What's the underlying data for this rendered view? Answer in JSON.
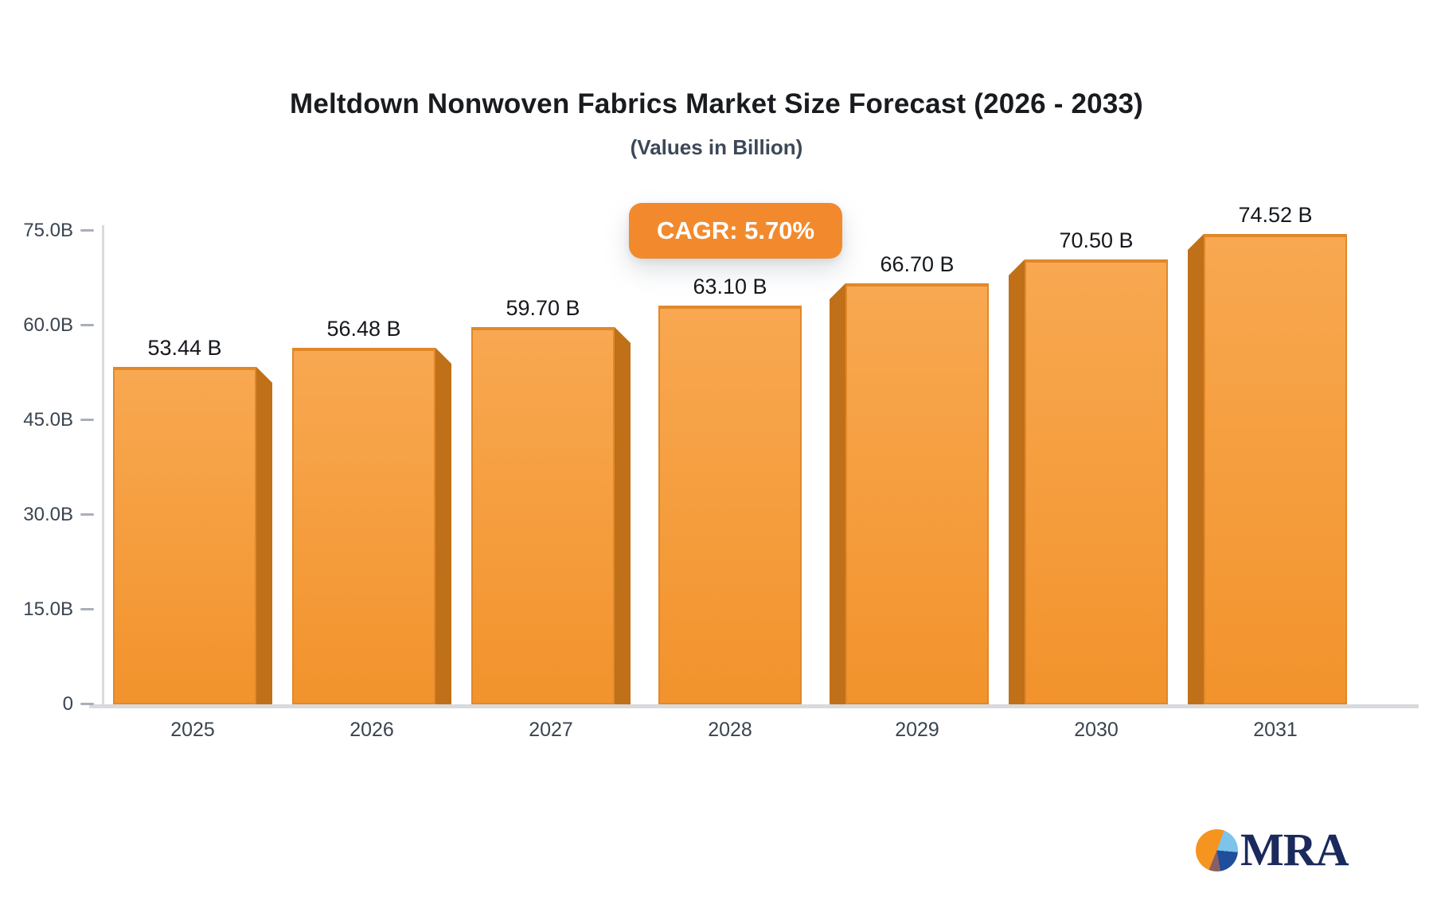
{
  "header": {
    "title": "Meltdown Nonwoven Fabrics Market Size Forecast (2026 - 2033)",
    "subtitle": "(Values in Billion)"
  },
  "badge": {
    "label": "CAGR: 5.70%",
    "background": "#F28A2D",
    "text_color": "#FFFFFF"
  },
  "logo": {
    "text": "MRA",
    "text_color": "#1B2A5C",
    "pie_colors": {
      "orange": "#F5941F",
      "light_blue": "#7EC3EA",
      "navy": "#1F4E9C",
      "maroon": "#8A5F63"
    }
  },
  "chart_data": {
    "type": "bar",
    "title": "Meltdown Nonwoven Fabrics Market Size Forecast (2026 - 2033)",
    "subtitle": "(Values in Billion)",
    "cagr_label": "CAGR: 5.70%",
    "categories": [
      "2025",
      "2026",
      "2027",
      "2028",
      "2029",
      "2030",
      "2031"
    ],
    "values": [
      53.44,
      56.48,
      59.7,
      63.1,
      66.7,
      70.5,
      74.52
    ],
    "value_labels": [
      "53.44 B",
      "56.48 B",
      "59.70 B",
      "63.10 B",
      "66.70 B",
      "70.50 B",
      "74.52 B"
    ],
    "value_suffix": "B",
    "ylim": [
      0,
      75
    ],
    "y_ticks": [
      {
        "label": "75.0B",
        "value": 75
      },
      {
        "label": "60.0B",
        "value": 60
      },
      {
        "label": "45.0B",
        "value": 45
      },
      {
        "label": "30.0B",
        "value": 30
      },
      {
        "label": "15.0B",
        "value": 15
      },
      {
        "label": "0",
        "value": 0
      }
    ],
    "grid": false,
    "legend": false,
    "bar_colors": {
      "face_top": "#F8A851",
      "face_bottom": "#F2932C",
      "edge": "#E0882A",
      "side": "#BF7018"
    },
    "axis_color": "#D8DADD",
    "tick_color": "#A9AFB8",
    "label_color": "#3A4450",
    "value_label_color": "#15181D"
  }
}
